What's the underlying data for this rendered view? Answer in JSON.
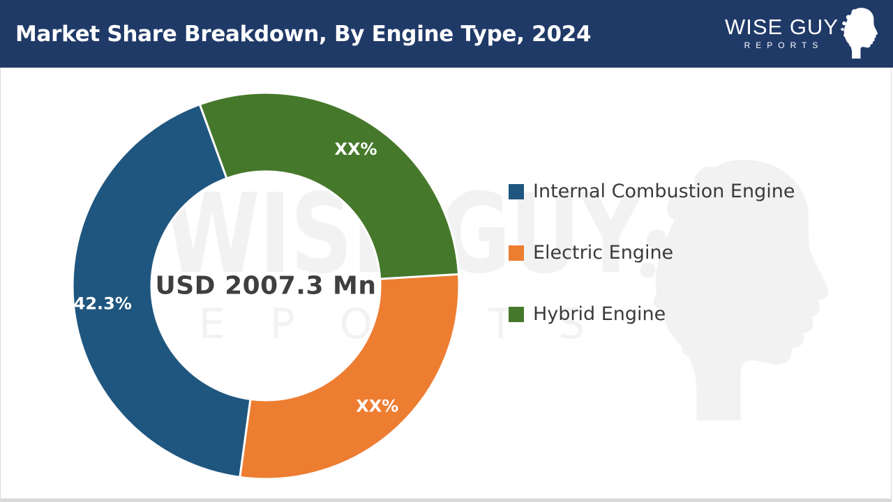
{
  "header": {
    "title": "Market Share Breakdown, By Engine Type, 2024",
    "logo": {
      "brand": "WISE GUY",
      "sub_brand": "REPORTS"
    }
  },
  "chart_data": {
    "type": "pie",
    "subtype": "donut",
    "title": "Market Share Breakdown, By Engine Type, 2024",
    "center_label": "USD 2007.3 Mn",
    "legend_position": "right",
    "start_angle_deg_from_top_clockwise": -20,
    "draw_order_clockwise": [
      "Hybrid Engine",
      "Electric Engine",
      "Internal Combustion Engine"
    ],
    "segments": [
      {
        "label": "Internal Combustion Engine",
        "display_value": "42.3%",
        "approx_value_pct": 42.3,
        "color": "#1f567f"
      },
      {
        "label": "Electric Engine",
        "display_value": "XX%",
        "approx_value_pct": 28.1,
        "color": "#ed7d31"
      },
      {
        "label": "Hybrid Engine",
        "display_value": "XX%",
        "approx_value_pct": 29.6,
        "color": "#45782b"
      }
    ]
  },
  "watermark": {
    "brand": "WISE GUY",
    "sub_brand": "REPORTS"
  },
  "colors": {
    "header_bg": "#203a68",
    "header_text": "#ffffff",
    "slice_label_text": "#ffffff",
    "center_text": "#3f3f3f",
    "legend_text": "#3a3a3a",
    "watermark": "#f2f2f3",
    "bottom_bar": "#d9d9d9"
  }
}
